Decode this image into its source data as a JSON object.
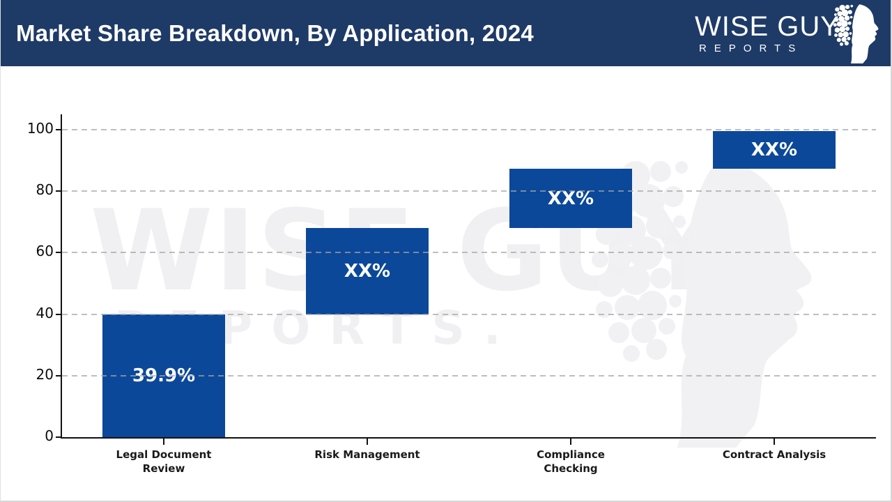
{
  "header": {
    "title": "Market Share Breakdown, By Application, 2024",
    "background_color": "#1e3a67",
    "logo": {
      "primary": "WISE GUY",
      "secondary": "REPORTS"
    }
  },
  "watermark": {
    "primary": "WISE GUY.",
    "secondary": "REPORTS."
  },
  "chart_data": {
    "type": "bar",
    "subtype": "waterfall",
    "title": "Market Share Breakdown, By Application, 2024",
    "categories": [
      "Legal Document Review",
      "Risk Management",
      "Compliance Checking",
      "Contract Analysis"
    ],
    "segments": [
      {
        "category": "Legal Document Review",
        "category_lines": [
          "Legal Document",
          "Review"
        ],
        "start": 0,
        "end": 39.9,
        "label": "39.9%"
      },
      {
        "category": "Risk Management",
        "category_lines": [
          "Risk Management"
        ],
        "start": 39.9,
        "end": 68.1,
        "label": "XX%"
      },
      {
        "category": "Compliance Checking",
        "category_lines": [
          "Compliance",
          "Checking"
        ],
        "start": 68.1,
        "end": 87.2,
        "label": "XX%"
      },
      {
        "category": "Contract Analysis",
        "category_lines": [
          "Contract Analysis"
        ],
        "start": 87.2,
        "end": 99.6,
        "label": "XX%"
      }
    ],
    "xlabel": "",
    "ylabel": "",
    "ylim": [
      0,
      105
    ],
    "yticks": [
      0,
      20,
      40,
      60,
      80,
      100
    ],
    "grid": "horizontal-dashed",
    "legend": "none",
    "bar_color": "#0c4899",
    "bar_label_color": "#ffffff"
  }
}
